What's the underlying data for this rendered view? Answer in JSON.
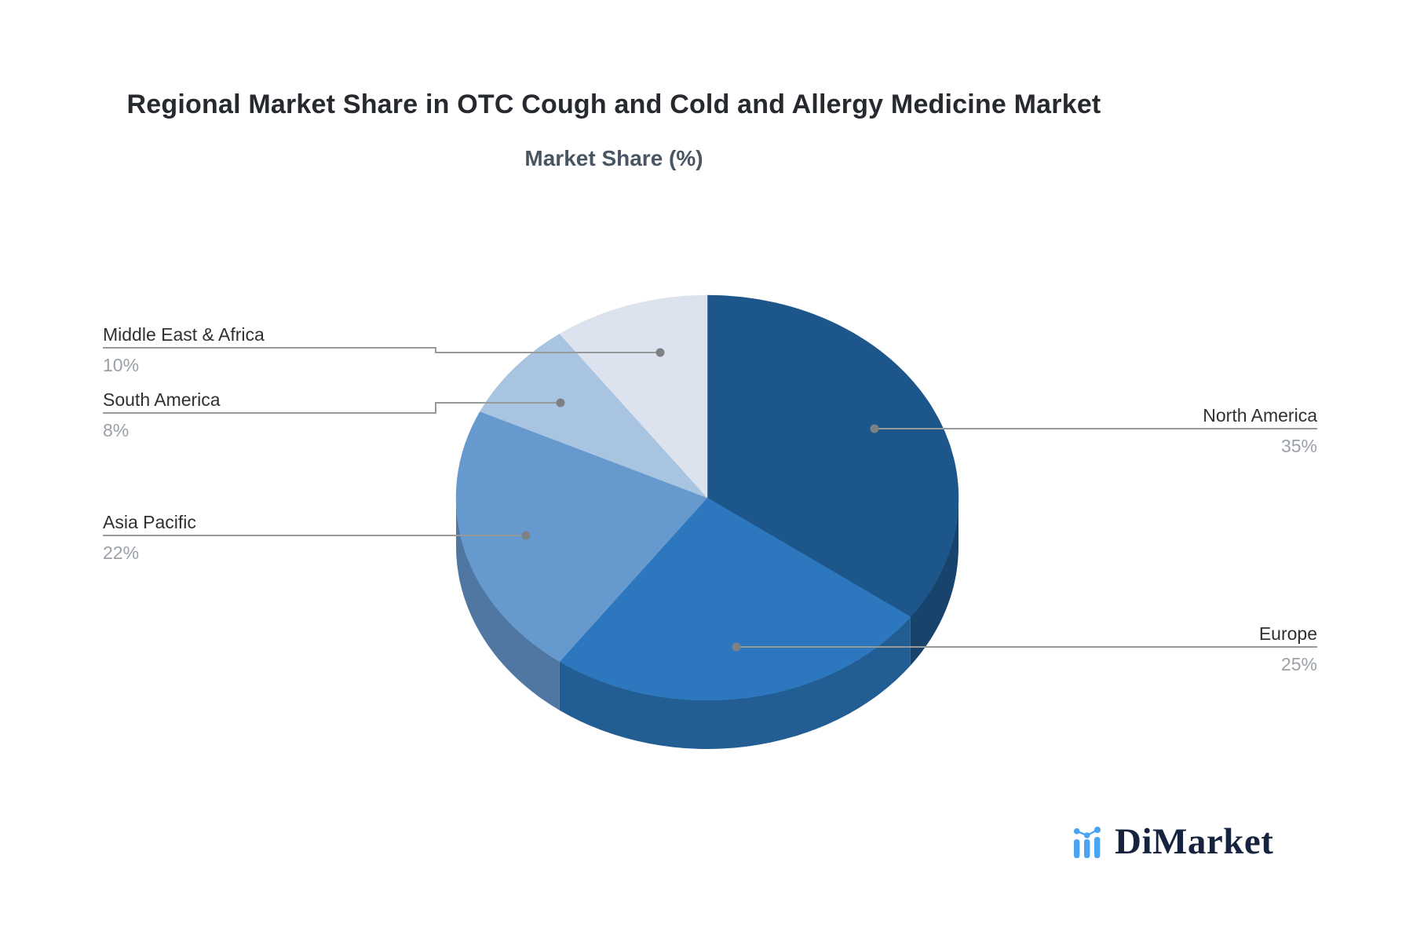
{
  "header": {
    "title": "Regional Market Share in OTC Cough and Cold and Allergy Medicine Market",
    "subtitle": "Market Share (%)"
  },
  "chart_data": {
    "type": "pie",
    "style": "3d",
    "unit": "%",
    "start_angle_deg": 0,
    "direction": "clockwise",
    "title": "Regional Market Share in OTC Cough and Cold and Allergy Medicine Market",
    "subtitle": "Market Share (%)",
    "legend_position": "callout-labels",
    "slices": [
      {
        "label": "North America",
        "value": 35,
        "pct_label": "35%",
        "color": "#1d568b"
      },
      {
        "label": "Europe",
        "value": 25,
        "pct_label": "25%",
        "color": "#2c77bd"
      },
      {
        "label": "Asia Pacific",
        "value": 22,
        "pct_label": "22%",
        "color": "#6699ce"
      },
      {
        "label": "South America",
        "value": 8,
        "pct_label": "8%",
        "color": "#a9c4e1"
      },
      {
        "label": "Middle East & Africa",
        "value": 10,
        "pct_label": "10%",
        "color": "#dce3ee"
      }
    ]
  },
  "branding": {
    "logo_text": "DiMarket",
    "logo_icon": "bar-chart-trend-icon",
    "icon_color": "#4aa4f2",
    "text_color": "#16233e"
  },
  "styles": {
    "label_color": "#2e3133",
    "pct_color": "#9aa0a6",
    "callout_line_color": "#97999b",
    "callout_dot_color": "#7d8184",
    "background": "#ffffff"
  }
}
